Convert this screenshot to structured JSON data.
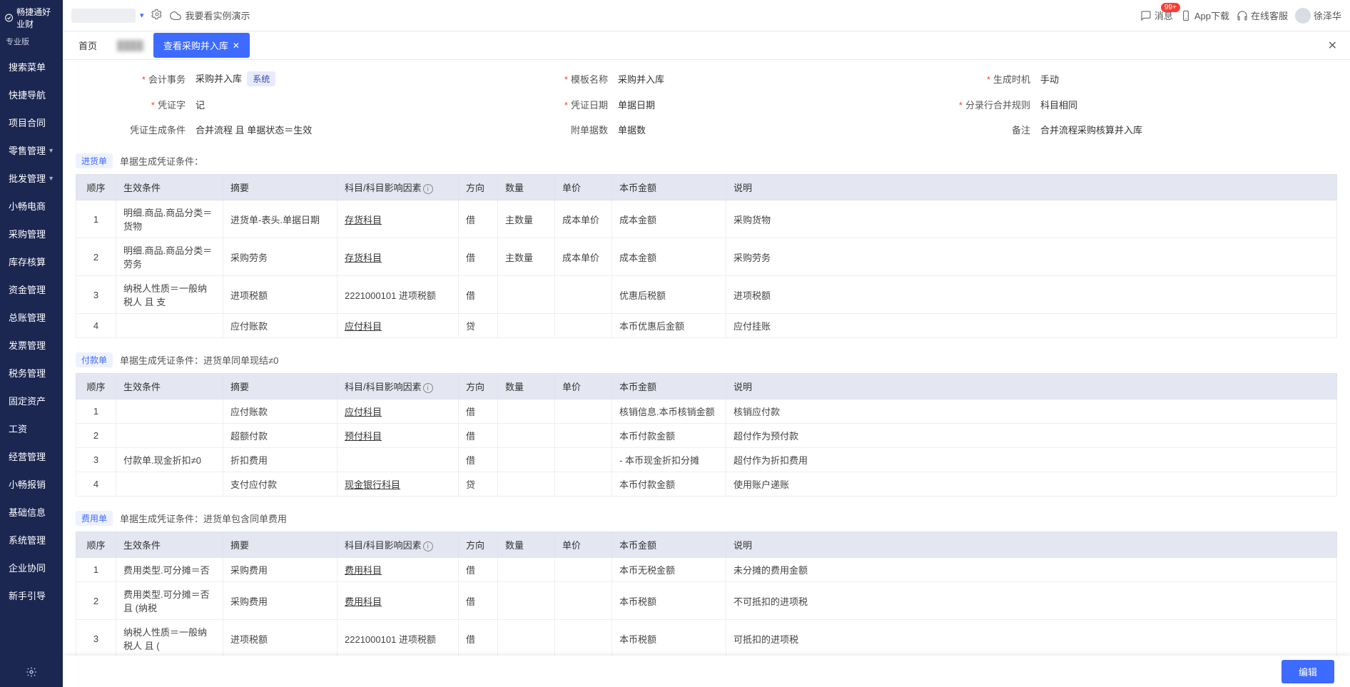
{
  "brand": {
    "name": "畅捷通好业财",
    "edition": "专业版"
  },
  "sidebar": {
    "items": [
      {
        "label": "搜索菜单",
        "caret": false
      },
      {
        "label": "快捷导航",
        "caret": false
      },
      {
        "label": "项目合同",
        "caret": false
      },
      {
        "label": "零售管理",
        "caret": true
      },
      {
        "label": "批发管理",
        "caret": true
      },
      {
        "label": "小畅电商",
        "caret": false
      },
      {
        "label": "采购管理",
        "caret": false
      },
      {
        "label": "库存核算",
        "caret": false
      },
      {
        "label": "资金管理",
        "caret": false
      },
      {
        "label": "总账管理",
        "caret": false
      },
      {
        "label": "发票管理",
        "caret": false
      },
      {
        "label": "税务管理",
        "caret": false
      },
      {
        "label": "固定资产",
        "caret": false
      },
      {
        "label": "工资",
        "caret": false
      },
      {
        "label": "经营管理",
        "caret": false
      },
      {
        "label": "小畅报销",
        "caret": false
      },
      {
        "label": "基础信息",
        "caret": false
      },
      {
        "label": "系统管理",
        "caret": false
      },
      {
        "label": "企业协同",
        "caret": false
      },
      {
        "label": "新手引导",
        "caret": false
      }
    ]
  },
  "topbar": {
    "demo": "我要看实例演示",
    "actions": {
      "msg": "消息",
      "badge": "99+",
      "download": "App下载",
      "service": "在线客服",
      "user": "徐泽华"
    }
  },
  "tabs": {
    "home": "首页",
    "active": "查看采购并入库"
  },
  "form": {
    "f1l": "会计事务",
    "f1v": "采购并入库",
    "f1tag": "系统",
    "f2l": "模板名称",
    "f2v": "采购并入库",
    "f3l": "生成时机",
    "f3v": "手动",
    "f4l": "凭证字",
    "f4v": "记",
    "f5l": "凭证日期",
    "f5v": "单据日期",
    "f6l": "分录行合并规则",
    "f6v": "科目相同",
    "f7l": "凭证生成条件",
    "f7v": "合并流程 且 单据状态＝生效",
    "f8l": "附单据数",
    "f8v": "单据数",
    "f9l": "备注",
    "f9v": "合并流程采购核算并入库"
  },
  "cols": {
    "seq": "顺序",
    "cond": "生效条件",
    "summary": "摘要",
    "subject": "科目/科目影响因素",
    "dir": "方向",
    "qty": "数量",
    "price": "单价",
    "amount": "本币金额",
    "desc": "说明"
  },
  "sec1": {
    "tag": "进货单",
    "cond": "单据生成凭证条件：",
    "rows": [
      {
        "seq": "1",
        "cond": "明细.商品.商品分类＝货物",
        "summary": "进货单-表头.单据日期",
        "subject": "存货科目",
        "link": true,
        "dir": "借",
        "qty": "主数量",
        "price": "成本单价",
        "amount": "成本金额",
        "desc": "采购货物"
      },
      {
        "seq": "2",
        "cond": "明细.商品.商品分类＝劳务",
        "summary": "采购劳务",
        "subject": "存货科目",
        "link": true,
        "dir": "借",
        "qty": "主数量",
        "price": "成本单价",
        "amount": "成本金额",
        "desc": "采购劳务"
      },
      {
        "seq": "3",
        "cond": "纳税人性质＝一般纳税人 且 支",
        "summary": "进项税额",
        "subject": "2221000101 进项税额",
        "link": false,
        "dir": "借",
        "qty": "",
        "price": "",
        "amount": "优惠后税额",
        "desc": "进项税额"
      },
      {
        "seq": "4",
        "cond": "",
        "summary": "应付账款",
        "subject": "应付科目",
        "link": true,
        "dir": "贷",
        "qty": "",
        "price": "",
        "amount": "本币优惠后金额",
        "desc": "应付挂账"
      }
    ]
  },
  "sec2": {
    "tag": "付款单",
    "cond": "单据生成凭证条件：进货单同单现结≠0",
    "rows": [
      {
        "seq": "1",
        "cond": "",
        "summary": "应付账款",
        "subject": "应付科目",
        "link": true,
        "dir": "借",
        "qty": "",
        "price": "",
        "amount": "核销信息.本币核销金额",
        "desc": "核销应付款"
      },
      {
        "seq": "2",
        "cond": "",
        "summary": "超额付款",
        "subject": "预付科目",
        "link": true,
        "dir": "借",
        "qty": "",
        "price": "",
        "amount": "本币付款金额",
        "desc": "超付作为预付款"
      },
      {
        "seq": "3",
        "cond": "付款单.现金折扣≠0",
        "summary": "折扣费用",
        "subject": "",
        "link": false,
        "dir": "借",
        "qty": "",
        "price": "",
        "amount": "- 本币现金折扣分摊",
        "desc": "超付作为折扣费用"
      },
      {
        "seq": "4",
        "cond": "",
        "summary": "支付应付款",
        "subject": "现金银行科目",
        "link": true,
        "dir": "贷",
        "qty": "",
        "price": "",
        "amount": "本币付款金额",
        "desc": "使用账户递账"
      }
    ]
  },
  "sec3": {
    "tag": "费用单",
    "cond": "单据生成凭证条件：进货单包含同单费用",
    "rows": [
      {
        "seq": "1",
        "cond": "费用类型.可分摊＝否",
        "summary": "采购费用",
        "subject": "费用科目",
        "link": true,
        "dir": "借",
        "qty": "",
        "price": "",
        "amount": "本币无税金额",
        "desc": "未分摊的费用金额"
      },
      {
        "seq": "2",
        "cond": "费用类型.可分摊＝否 且 (纳税",
        "summary": "采购费用",
        "subject": "费用科目",
        "link": true,
        "dir": "借",
        "qty": "",
        "price": "",
        "amount": "本币税额",
        "desc": "不可抵扣的进项税"
      },
      {
        "seq": "3",
        "cond": "纳税人性质＝一般纳税人 且 (",
        "summary": "进项税额",
        "subject": "2221000101 进项税额",
        "link": false,
        "dir": "借",
        "qty": "",
        "price": "",
        "amount": "本币税额",
        "desc": "可抵扣的进项税"
      }
    ]
  },
  "footer": {
    "edit": "编辑"
  }
}
